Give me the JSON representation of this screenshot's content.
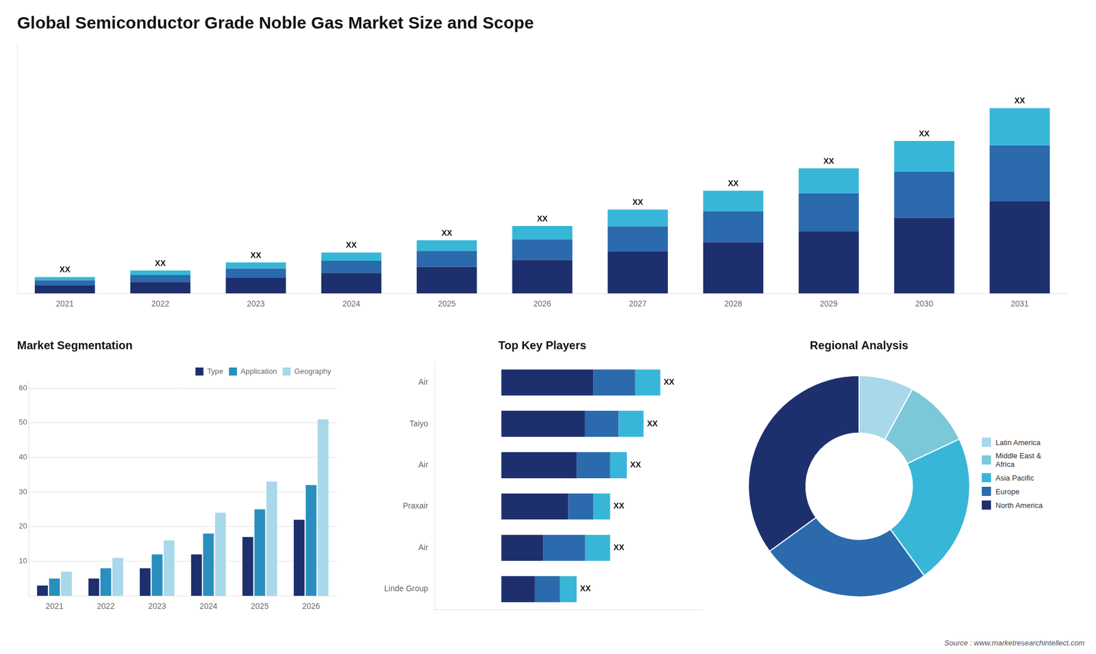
{
  "chart_data": [
    {
      "type": "bar",
      "title": "Global Semiconductor Grade Noble Gas Market Size and Scope",
      "categories": [
        "2021",
        "2022",
        "2023",
        "2024",
        "2025",
        "2026",
        "2027",
        "2028",
        "2029",
        "2030",
        "2031"
      ],
      "series": [
        {
          "color": "#1e2f6e",
          "values": [
            2.0,
            2.8,
            3.8,
            5.0,
            6.5,
            8.2,
            10.2,
            12.5,
            15.2,
            18.5,
            22.5
          ]
        },
        {
          "color": "#2a6aad",
          "values": [
            1.2,
            1.7,
            2.3,
            3.0,
            3.9,
            5.0,
            6.2,
            7.6,
            9.3,
            11.3,
            13.7
          ]
        },
        {
          "color": "#38b6d8",
          "values": [
            0.8,
            1.1,
            1.5,
            2.0,
            2.6,
            3.3,
            4.1,
            5.0,
            6.1,
            7.5,
            9.1
          ]
        }
      ],
      "stacked": true,
      "ylim": [
        0,
        61.155
      ],
      "tick_labels": "x",
      "grid": false,
      "annotations": [
        "XX",
        "XX",
        "XX",
        "XX",
        "XX",
        "XX",
        "XX",
        "XX",
        "XX",
        "XX",
        "XX"
      ]
    },
    {
      "type": "bar",
      "title": "Market Segmentation",
      "categories": [
        "2021",
        "2022",
        "2023",
        "2024",
        "2025",
        "2026"
      ],
      "series": [
        {
          "name": "Type",
          "color": "#1e2f6e",
          "values": [
            3,
            5,
            8,
            12,
            17,
            22
          ]
        },
        {
          "name": "Application",
          "color": "#2a8fbf",
          "values": [
            5,
            8,
            12,
            18,
            25,
            32
          ]
        },
        {
          "name": "Geography",
          "color": "#a8d8ea",
          "values": [
            7,
            11,
            16,
            24,
            33,
            51
          ]
        }
      ],
      "ylim": [
        0,
        62
      ],
      "yticks": [
        10,
        20,
        30,
        40,
        50,
        60
      ],
      "grid": true,
      "legend": "upper right"
    },
    {
      "type": "bar",
      "title": "Top Key Players",
      "orientation": "horizontal",
      "stacked": true,
      "categories": [
        "Air",
        "Taiyo",
        "Air",
        "Praxair",
        "Air",
        "Linde Group"
      ],
      "series": [
        {
          "color": "#1e2f6e",
          "values": [
            5.5,
            5.0,
            4.5,
            4.0,
            2.5,
            2.0
          ]
        },
        {
          "color": "#2a6aad",
          "values": [
            2.5,
            2.0,
            2.0,
            1.5,
            2.5,
            1.5
          ]
        },
        {
          "color": "#38b6d8",
          "values": [
            1.5,
            1.5,
            1.0,
            1.0,
            1.5,
            1.0
          ]
        }
      ],
      "xlim": [
        -4,
        12
      ],
      "tick_labels": "y",
      "grid": false,
      "annotations": [
        "XX",
        "XX",
        "XX",
        "XX",
        "XX",
        "XX"
      ]
    },
    {
      "type": "doughnut",
      "title": "Regional Analysis",
      "categories": [
        "Latin America",
        "Middle East &\nAfrica",
        "Asia Pacific",
        "Europe",
        "North America"
      ],
      "values": [
        8,
        10,
        22,
        25,
        35
      ],
      "colors": [
        "#a8d8ea",
        "#7bc8d8",
        "#38b6d8",
        "#2a6aad",
        "#1e2f6e"
      ],
      "legend": "right",
      "annotations": [
        "Source : www.marketresearchintellect.com"
      ]
    }
  ]
}
